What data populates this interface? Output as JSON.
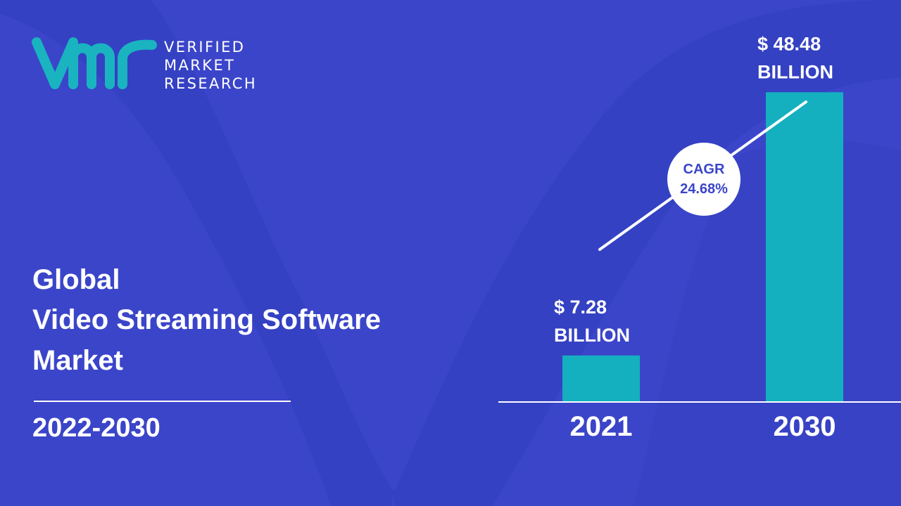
{
  "brand": {
    "line1": "VERIFIED",
    "line2": "MARKET",
    "line3": "RESEARCH",
    "logo_color": "#19b4c0"
  },
  "title": {
    "line1": "Global",
    "line2": "Video Streaming Software",
    "line3": "Market"
  },
  "period": "2022-2030",
  "colors": {
    "background": "#3b45c9",
    "bar": "#14b0bf",
    "cagr_text": "#3b45c9"
  },
  "chart_data": {
    "type": "bar",
    "categories": [
      "2021",
      "2030"
    ],
    "values": [
      7.28,
      48.48
    ],
    "value_labels": [
      [
        "$ 7.28",
        "BILLION"
      ],
      [
        "$ 48.48",
        "BILLION"
      ]
    ],
    "annotation": {
      "line1": "CAGR",
      "line2": "24.68%"
    },
    "ylim": [
      0,
      55
    ],
    "grid": false,
    "legend": "none"
  }
}
